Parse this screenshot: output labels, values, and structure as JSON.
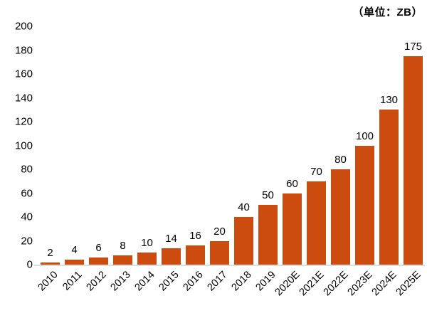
{
  "chart_data": {
    "type": "bar",
    "unit_label": "（单位：ZB）",
    "categories": [
      "2010",
      "2011",
      "2012",
      "2013",
      "2014",
      "2015",
      "2016",
      "2017",
      "2018",
      "2019",
      "2020E",
      "2021E",
      "2022E",
      "2023E",
      "2024E",
      "2025E"
    ],
    "values": [
      2,
      4,
      6,
      8,
      10,
      14,
      16,
      20,
      40,
      50,
      60,
      70,
      80,
      100,
      130,
      175
    ],
    "ytick_labels": [
      "0",
      "20",
      "40",
      "60",
      "80",
      "100",
      "120",
      "140",
      "160",
      "180",
      "200"
    ],
    "ylim": [
      0,
      200
    ],
    "ytick_step": 20,
    "grid": false,
    "legend": "none",
    "value_labels": true,
    "xtick_rotation_deg": 45,
    "bar_color": "#CC4B0E",
    "axis_line_color": "#DCDCDC",
    "text_color": "#000000"
  }
}
